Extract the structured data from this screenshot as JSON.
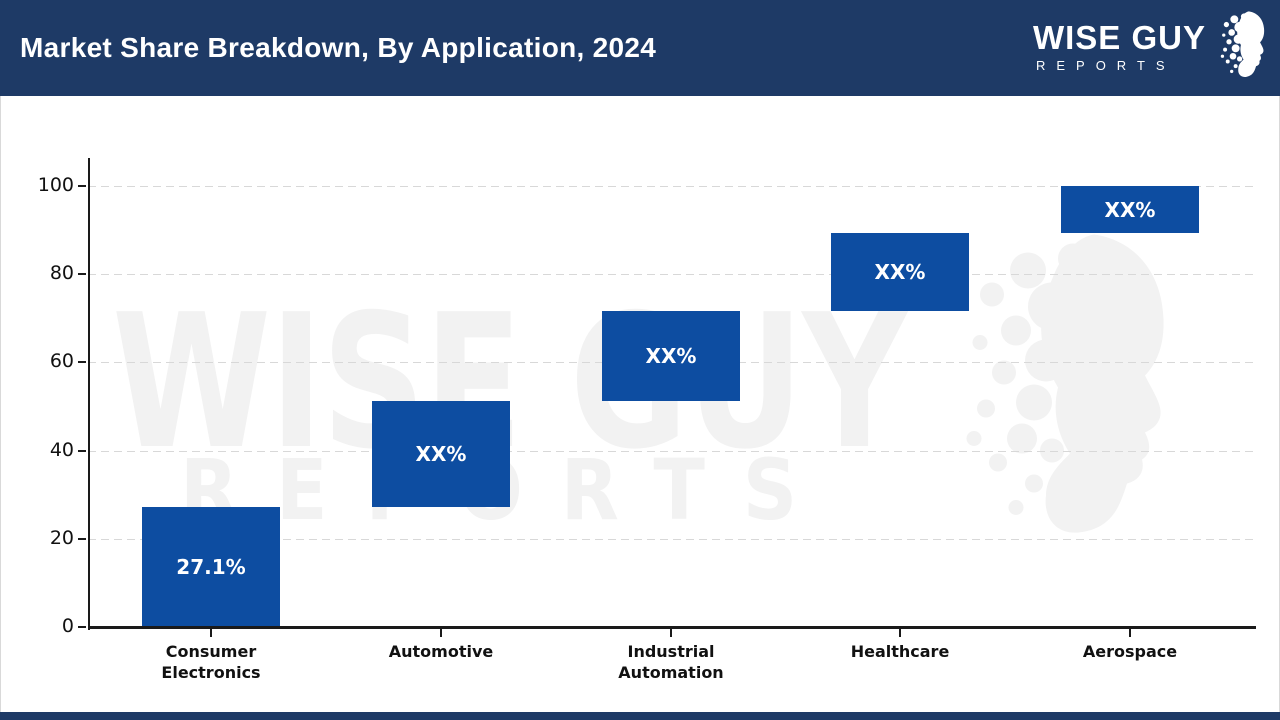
{
  "header": {
    "title": "Market Share Breakdown, By Application, 2024",
    "logo": {
      "line1": "WISE GUY",
      "line2": "REPORTS"
    }
  },
  "watermark": {
    "line1": "WISE GUY",
    "line2": "REPORTS"
  },
  "chart_data": {
    "type": "bar",
    "variant": "waterfall",
    "title": "Market Share Breakdown, By Application, 2024",
    "categories": [
      "Consumer Electronics",
      "Automotive",
      "Industrial Automation",
      "Healthcare",
      "Aerospace"
    ],
    "segments": [
      {
        "category": "Consumer Electronics",
        "label": "27.1%",
        "start": 0,
        "end": 27.1
      },
      {
        "category": "Automotive",
        "label": "XX%",
        "start": 27.1,
        "end": 51.2
      },
      {
        "category": "Industrial Automation",
        "label": "XX%",
        "start": 51.2,
        "end": 71.7
      },
      {
        "category": "Healthcare",
        "label": "XX%",
        "start": 71.7,
        "end": 89.3
      },
      {
        "category": "Aerospace",
        "label": "XX%",
        "start": 89.3,
        "end": 100
      }
    ],
    "yticks": [
      0,
      20,
      40,
      60,
      80,
      100
    ],
    "ylim": [
      0,
      106
    ],
    "grid": "horizontal-dashed",
    "legend": "none",
    "colors": {
      "bar": "#0d4da1",
      "bar_label": "#ffffff",
      "header_bg": "#1e3a66",
      "grid": "#d8d8d8",
      "axis": "#1a1a1a",
      "watermark": "#f2f2f2"
    }
  }
}
